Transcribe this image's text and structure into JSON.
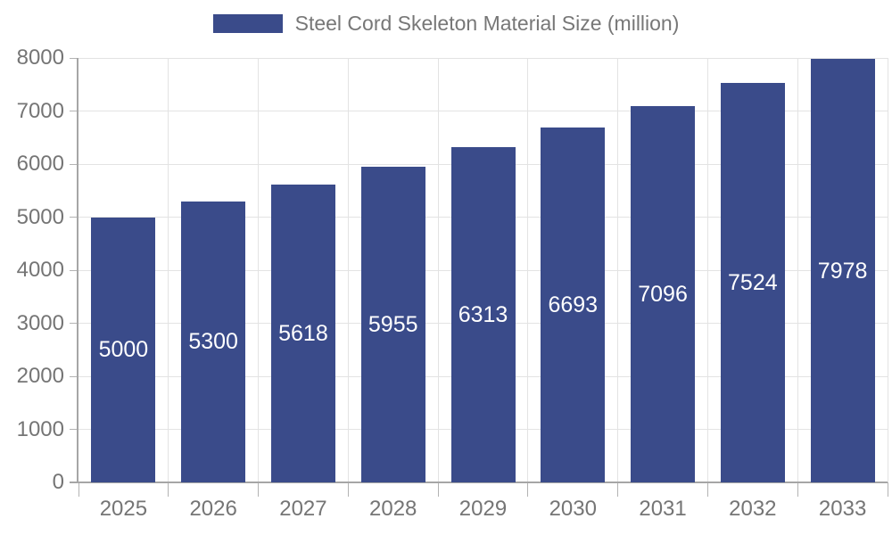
{
  "legend": {
    "label": "Steel Cord Skeleton Material Size (million)",
    "swatch_color": "#3A4B8A"
  },
  "chart_data": {
    "type": "bar",
    "title": "Steel Cord Skeleton Material Size (million)",
    "categories": [
      "2025",
      "2026",
      "2027",
      "2028",
      "2029",
      "2030",
      "2031",
      "2032",
      "2033"
    ],
    "values": [
      5000,
      5300,
      5618,
      5955,
      6313,
      6693,
      7096,
      7524,
      7978
    ],
    "xlabel": "",
    "ylabel": "",
    "ylim": [
      0,
      8000
    ],
    "ytick_step": 1000,
    "grid": true,
    "legend_position": "top",
    "bar_color": "#3A4B8A",
    "value_label_color": "#FFFFFF"
  },
  "colors": {
    "background": "#FFFFFF",
    "grid": "#E3E3E3",
    "axis": "#A6A6A6",
    "tick": "#B3B3B3",
    "axis_text": "#757575",
    "legend_text": "#777777"
  }
}
